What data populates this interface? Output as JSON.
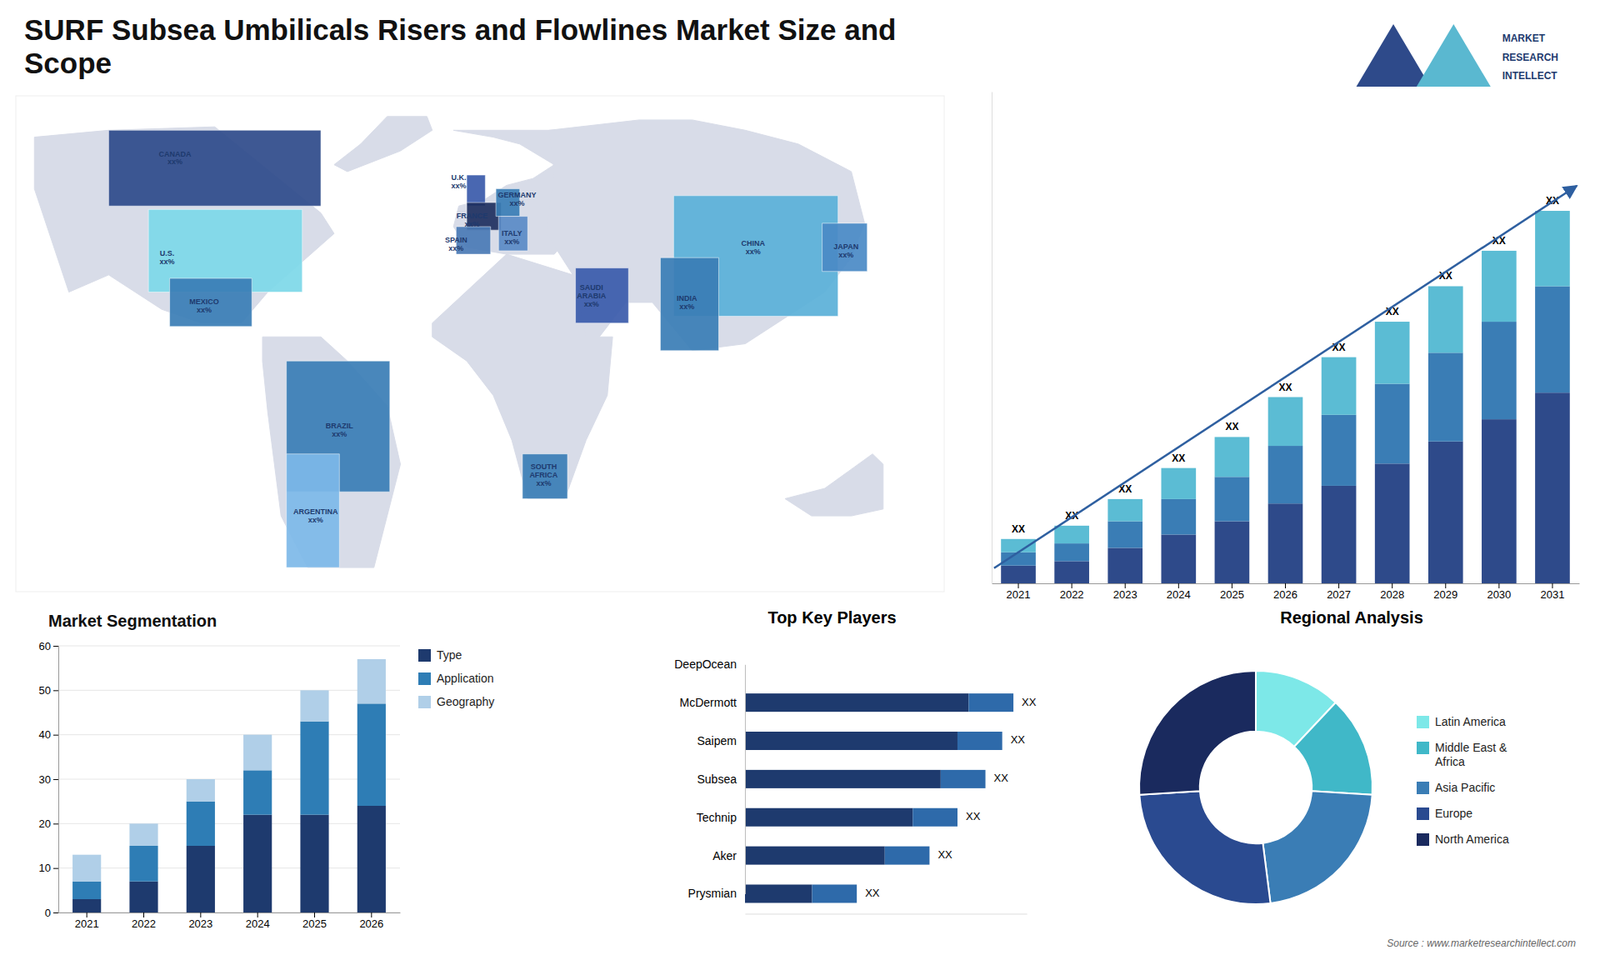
{
  "chart_data": [
    {
      "type": "bar",
      "stacked": true,
      "title": "SURF Subsea Umbilicals Risers and Flowlines Market Size and\nScope",
      "categories": [
        "2021",
        "2022",
        "2023",
        "2024",
        "2025",
        "2026",
        "2027",
        "2028",
        "2029",
        "2030",
        "2031"
      ],
      "series": [
        {
          "color": "#2e4a8a",
          "values": [
            4,
            5,
            8,
            11,
            14,
            18,
            22,
            27,
            32,
            37,
            43
          ]
        },
        {
          "color": "#3a7db5",
          "values": [
            3,
            4,
            6,
            8,
            10,
            13,
            16,
            18,
            20,
            22,
            24
          ]
        },
        {
          "color": "#5bbcd4",
          "values": [
            3,
            4,
            5,
            7,
            9,
            11,
            13,
            14,
            15,
            16,
            17
          ]
        }
      ],
      "ylim": [
        0,
        110.88
      ],
      "tick_labels": "x",
      "grid": false,
      "annotations": [
        "XX",
        "XX",
        "XX",
        "XX",
        "XX",
        "XX",
        "XX",
        "XX",
        "XX",
        "XX",
        "XX"
      ],
      "arrow": {
        "color": "#2e5fa0"
      },
      "logo": {
        "texts": [
          "MARKET",
          "RESEARCH",
          "INTELLECT"
        ],
        "colors": [
          "#2e4a8a",
          "#5ab8d0",
          "#1e3a6e"
        ]
      },
      "source": "Source : www.marketresearchintellect.com"
    },
    {
      "type": "map",
      "xlim": [
        -175,
        175
      ],
      "ylim": [
        -62,
        82
      ],
      "tick_labels": false,
      "color": "#d8dce8",
      "land": [
        [
          [
            -168,
            70
          ],
          [
            -140,
            72
          ],
          [
            -100,
            73
          ],
          [
            -60,
            48
          ],
          [
            -55,
            42
          ],
          [
            -80,
            25
          ],
          [
            -90,
            16
          ],
          [
            -105,
            16
          ],
          [
            -120,
            20
          ],
          [
            -130,
            25
          ],
          [
            -140,
            30
          ],
          [
            -155,
            25
          ],
          [
            -168,
            55
          ]
        ],
        [
          [
            -82,
            12
          ],
          [
            -60,
            12
          ],
          [
            -50,
            5
          ],
          [
            -35,
            -8
          ],
          [
            -30,
            -25
          ],
          [
            -40,
            -55
          ],
          [
            -65,
            -55
          ],
          [
            -75,
            -40
          ],
          [
            -80,
            -10
          ],
          [
            -82,
            5
          ]
        ],
        [
          [
            -10,
            72
          ],
          [
            30,
            72
          ],
          [
            40,
            60
          ],
          [
            35,
            42
          ],
          [
            28,
            36
          ],
          [
            10,
            36
          ],
          [
            -5,
            38
          ],
          [
            -10,
            44
          ],
          [
            -8,
            50
          ],
          [
            2,
            52
          ],
          [
            10,
            56
          ],
          [
            20,
            58
          ],
          [
            28,
            62
          ],
          [
            15,
            68
          ],
          [
            5,
            70
          ]
        ],
        [
          [
            -18,
            16
          ],
          [
            10,
            36
          ],
          [
            35,
            30
          ],
          [
            42,
            12
          ],
          [
            50,
            12
          ],
          [
            48,
            -5
          ],
          [
            40,
            -18
          ],
          [
            32,
            -35
          ],
          [
            18,
            -35
          ],
          [
            12,
            -18
          ],
          [
            5,
            -5
          ],
          [
            -5,
            5
          ],
          [
            -18,
            12
          ]
        ],
        [
          [
            26,
            72
          ],
          [
            60,
            75
          ],
          [
            80,
            75
          ],
          [
            100,
            72
          ],
          [
            120,
            68
          ],
          [
            140,
            60
          ],
          [
            145,
            45
          ],
          [
            140,
            35
          ],
          [
            130,
            25
          ],
          [
            120,
            20
          ],
          [
            100,
            10
          ],
          [
            80,
            8
          ],
          [
            65,
            22
          ],
          [
            55,
            22
          ],
          [
            45,
            12
          ],
          [
            40,
            12
          ],
          [
            35,
            30
          ],
          [
            25,
            42
          ],
          [
            28,
            60
          ]
        ],
        [
          [
            115,
            -35
          ],
          [
            130,
            -32
          ],
          [
            148,
            -22
          ],
          [
            152,
            -25
          ],
          [
            152,
            -38
          ],
          [
            140,
            -40
          ],
          [
            125,
            -40
          ],
          [
            115,
            -35
          ]
        ],
        [
          [
            -55,
            62
          ],
          [
            -45,
            68
          ],
          [
            -35,
            76
          ],
          [
            -20,
            76
          ],
          [
            -18,
            72
          ],
          [
            -30,
            66
          ],
          [
            -50,
            60
          ]
        ]
      ],
      "regions": [
        {
          "name": "CANADA",
          "color": "#2e4a8a",
          "polygon": [
            [
              -140,
              50
            ],
            [
              -60,
              50
            ],
            [
              -60,
              72
            ],
            [
              -140,
              72
            ]
          ]
        },
        {
          "name": "U.S.",
          "color": "#7dd8e8",
          "polygon": [
            [
              -125,
              25
            ],
            [
              -67,
              25
            ],
            [
              -67,
              49
            ],
            [
              -125,
              49
            ]
          ]
        },
        {
          "name": "MEXICO",
          "color": "#3a7db5",
          "polygon": [
            [
              -117,
              15
            ],
            [
              -86,
              15
            ],
            [
              -86,
              29
            ],
            [
              -117,
              29
            ]
          ]
        },
        {
          "name": "BRAZIL",
          "color": "#3a7db5",
          "polygon": [
            [
              -73,
              -33
            ],
            [
              -34,
              -33
            ],
            [
              -34,
              5
            ],
            [
              -73,
              5
            ]
          ]
        },
        {
          "name": "ARGENTINA",
          "color": "#7db8e8",
          "polygon": [
            [
              -73,
              -55
            ],
            [
              -53,
              -55
            ],
            [
              -53,
              -22
            ],
            [
              -73,
              -22
            ]
          ]
        },
        {
          "name": "U.K.",
          "color": "#3a5aaa",
          "polygon": [
            [
              -5,
              50
            ],
            [
              2,
              50
            ],
            [
              2,
              59
            ],
            [
              -5,
              59
            ]
          ]
        },
        {
          "name": "FRANCE",
          "color": "#1e2f5e",
          "polygon": [
            [
              -5,
              43
            ],
            [
              8,
              43
            ],
            [
              8,
              51
            ],
            [
              -5,
              51
            ]
          ]
        },
        {
          "name": "SPAIN",
          "color": "#4a7ab5",
          "polygon": [
            [
              -9,
              36
            ],
            [
              4,
              36
            ],
            [
              4,
              44
            ],
            [
              -9,
              44
            ]
          ]
        },
        {
          "name": "GERMANY",
          "color": "#3a7db5",
          "polygon": [
            [
              6,
              47
            ],
            [
              15,
              47
            ],
            [
              15,
              55
            ],
            [
              6,
              55
            ]
          ]
        },
        {
          "name": "ITALY",
          "color": "#5a8ac5",
          "polygon": [
            [
              7,
              37
            ],
            [
              18,
              37
            ],
            [
              18,
              47
            ],
            [
              7,
              47
            ]
          ]
        },
        {
          "name": "SAUDI ARABIA",
          "color": "#3a5aaa",
          "polygon": [
            [
              36,
              16
            ],
            [
              56,
              16
            ],
            [
              56,
              32
            ],
            [
              36,
              32
            ]
          ]
        },
        {
          "name": "SOUTH AFRICA",
          "color": "#3a7db5",
          "polygon": [
            [
              16,
              -35
            ],
            [
              33,
              -35
            ],
            [
              33,
              -22
            ],
            [
              16,
              -22
            ]
          ]
        },
        {
          "name": "CHINA",
          "color": "#5ab0d8",
          "polygon": [
            [
              73,
              18
            ],
            [
              135,
              18
            ],
            [
              135,
              53
            ],
            [
              73,
              53
            ]
          ]
        },
        {
          "name": "INDIA",
          "color": "#3a7db5",
          "polygon": [
            [
              68,
              8
            ],
            [
              90,
              8
            ],
            [
              90,
              35
            ],
            [
              68,
              35
            ]
          ]
        },
        {
          "name": "JAPAN",
          "color": "#4a8ac5",
          "polygon": [
            [
              129,
              31
            ],
            [
              146,
              31
            ],
            [
              146,
              45
            ],
            [
              129,
              45
            ]
          ]
        }
      ],
      "annotations": [
        {
          "text": "CANADA\nxx%",
          "x": -115,
          "y": 64
        },
        {
          "text": "U.S.\nxx%",
          "x": -118,
          "y": 35
        },
        {
          "text": "MEXICO\nxx%",
          "x": -104,
          "y": 21
        },
        {
          "text": "BRAZIL\nxx%",
          "x": -53,
          "y": -15
        },
        {
          "text": "ARGENTINA\nxx%",
          "x": -62,
          "y": -40
        },
        {
          "text": "U.K.\nxx%",
          "x": -8,
          "y": 57
        },
        {
          "text": "FRANCE\nxx%",
          "x": -3,
          "y": 46
        },
        {
          "text": "SPAIN\nxx%",
          "x": -9,
          "y": 39
        },
        {
          "text": "GERMANY\nxx%",
          "x": 14,
          "y": 52
        },
        {
          "text": "ITALY\nxx%",
          "x": 12,
          "y": 41
        },
        {
          "text": "SAUDI\nARABIA\nxx%",
          "x": 42,
          "y": 24
        },
        {
          "text": "SOUTH\nAFRICA\nxx%",
          "x": 24,
          "y": -28
        },
        {
          "text": "CHINA\nxx%",
          "x": 103,
          "y": 38
        },
        {
          "text": "INDIA\nxx%",
          "x": 78,
          "y": 22
        },
        {
          "text": "JAPAN\nxx%",
          "x": 138,
          "y": 37
        }
      ]
    },
    {
      "type": "bar",
      "stacked": true,
      "title": "Market Segmentation",
      "categories": [
        "2021",
        "2022",
        "2023",
        "2024",
        "2025",
        "2026"
      ],
      "series": [
        {
          "name": "Type",
          "color": "#1e3a6e",
          "values": [
            3,
            7,
            15,
            22,
            22,
            24
          ]
        },
        {
          "name": "Application",
          "color": "#2e7db5",
          "values": [
            4,
            8,
            10,
            10,
            21,
            23
          ]
        },
        {
          "name": "Geography",
          "color": "#b0cfe8",
          "values": [
            6,
            5,
            5,
            8,
            7,
            10
          ]
        }
      ],
      "ylim": [
        0,
        60
      ],
      "yticks": [
        0,
        10,
        20,
        30,
        40,
        50,
        60
      ],
      "grid": true,
      "legend": "right"
    },
    {
      "type": "bar",
      "orientation": "horizontal",
      "stacked": true,
      "title": "Top Key Players",
      "categories": [
        "DeepOcean",
        "McDermott",
        "Saipem",
        "Subsea",
        "Technip",
        "Aker",
        "Prysmian"
      ],
      "series": [
        {
          "color": "#1e3a6e",
          "values": [
            0,
            40,
            38,
            35,
            30,
            25,
            12
          ]
        },
        {
          "color": "#2e6aaa",
          "values": [
            0,
            8,
            8,
            8,
            8,
            8,
            8
          ]
        }
      ],
      "xlim": [
        0,
        50.4
      ],
      "tick_labels": "y",
      "annotations": [
        null,
        "XX",
        "XX",
        "XX",
        "XX",
        "XX",
        "XX"
      ]
    },
    {
      "type": "donut",
      "title": "Regional Analysis",
      "categories": [
        "Latin America",
        "Middle East &\nAfrica",
        "Asia Pacific",
        "Europe",
        "North America"
      ],
      "values": [
        12,
        14,
        22,
        26,
        26
      ],
      "colors": [
        "#7de8e8",
        "#40b8c8",
        "#3a7db5",
        "#2a4a90",
        "#1a2a5e"
      ],
      "legend": "right"
    }
  ]
}
